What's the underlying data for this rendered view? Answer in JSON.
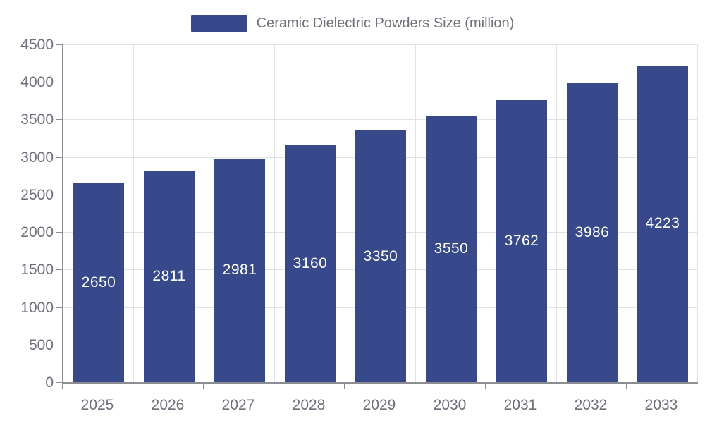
{
  "legend": {
    "label": "Ceramic Dielectric Powders Size (million)"
  },
  "chart_data": {
    "type": "bar",
    "title": "",
    "series_name": "Ceramic Dielectric Powders Size (million)",
    "categories": [
      "2025",
      "2026",
      "2027",
      "2028",
      "2029",
      "2030",
      "2031",
      "2032",
      "2033"
    ],
    "values": [
      2650,
      2811,
      2981,
      3160,
      3350,
      3550,
      3762,
      3986,
      4223
    ],
    "xlabel": "",
    "ylabel": "",
    "ylim": [
      0,
      4500
    ],
    "ytick_step": 500,
    "ytick_labels": [
      "0",
      "500",
      "1000",
      "1500",
      "2000",
      "2500",
      "3000",
      "3500",
      "4000",
      "4500"
    ],
    "grid": true,
    "legend_position": "top-center",
    "bar_label_position": "inside-center",
    "colors": {
      "bar": "#37498A",
      "bar_label": "#FFFFFF",
      "grid_line": "#E1E1E8",
      "axis_line": "#8B8D92",
      "tick_text": "#6E7079",
      "legend_text": "#6E7079",
      "background": "#FFFFFF"
    }
  }
}
